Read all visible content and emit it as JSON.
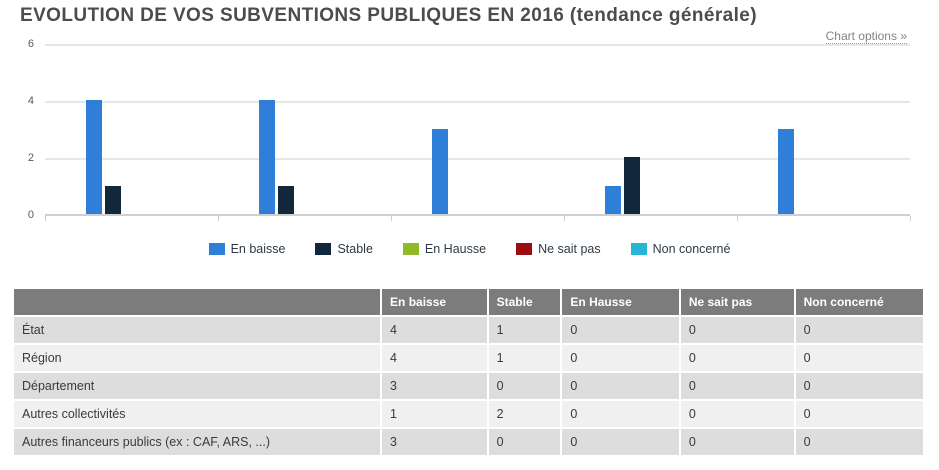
{
  "header": {
    "title": "EVOLUTION DE VOS SUBVENTIONS PUBLIQUES EN 2016 (tendance générale)",
    "chart_options_label": "Chart options »"
  },
  "chart_data": {
    "type": "bar",
    "title": "EVOLUTION DE VOS SUBVENTIONS PUBLIQUES EN 2016 (tendance générale)",
    "categories": [
      "État",
      "Région",
      "Département",
      "Autres collectivités",
      "Autres financeurs publics (ex : CAF, ARS, ...)"
    ],
    "series": [
      {
        "name": "En baisse",
        "color": "#2f7ed8",
        "values": [
          4,
          4,
          3,
          1,
          3
        ]
      },
      {
        "name": "Stable",
        "color": "#12263c",
        "values": [
          1,
          1,
          0,
          2,
          0
        ]
      },
      {
        "name": "En Hausse",
        "color": "#8fbb28",
        "values": [
          0,
          0,
          0,
          0,
          0
        ]
      },
      {
        "name": "Ne sait pas",
        "color": "#9a0e10",
        "values": [
          0,
          0,
          0,
          0,
          0
        ]
      },
      {
        "name": "Non concerné",
        "color": "#29b6d4",
        "values": [
          0,
          0,
          0,
          0,
          0
        ]
      }
    ],
    "xlabel": "",
    "ylabel": "",
    "ylim": [
      0,
      6
    ],
    "yticks": [
      0,
      2,
      4,
      6
    ],
    "grid": true,
    "legend_position": "bottom",
    "x_tick_labels_visible": false
  },
  "table": {
    "columns": [
      "",
      "En baisse",
      "Stable",
      "En Hausse",
      "Ne sait pas",
      "Non concerné"
    ],
    "rows": [
      {
        "label": "État",
        "values": [
          "4",
          "1",
          "0",
          "0",
          "0"
        ]
      },
      {
        "label": "Région",
        "values": [
          "4",
          "1",
          "0",
          "0",
          "0"
        ]
      },
      {
        "label": "Département",
        "values": [
          "3",
          "0",
          "0",
          "0",
          "0"
        ]
      },
      {
        "label": "Autres collectivités",
        "values": [
          "1",
          "2",
          "0",
          "0",
          "0"
        ]
      },
      {
        "label": "Autres financeurs publics (ex : CAF, ARS, ...)",
        "values": [
          "3",
          "0",
          "0",
          "0",
          "0"
        ]
      }
    ]
  }
}
